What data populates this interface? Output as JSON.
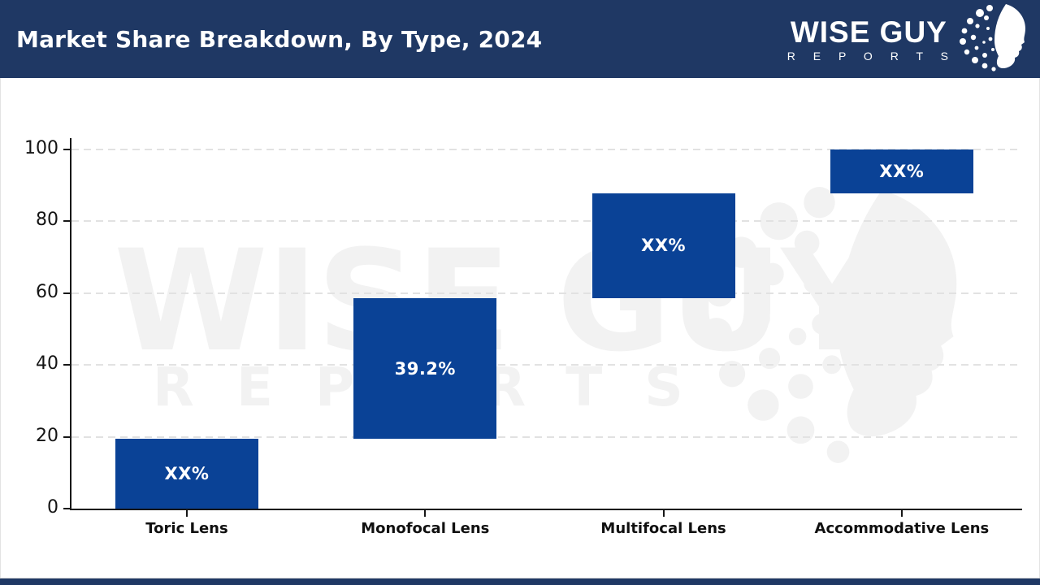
{
  "header": {
    "title": "Market Share Breakdown, By Type, 2024",
    "background_color": "#1f3864",
    "brand": {
      "line1": "WISE GUY",
      "line2": "R E P O R T S"
    }
  },
  "watermark": {
    "line1": "WISE GUY",
    "line2": "REPORTS"
  },
  "chart_data": {
    "type": "bar",
    "subtype": "waterfall-floating-bars",
    "title": "Market Share Breakdown, By Type, 2024",
    "xlabel": "",
    "ylabel": "",
    "categories": [
      "Toric Lens",
      "Monofocal Lens",
      "Multifocal Lens",
      "Accommodative Lens"
    ],
    "segments": [
      {
        "category": "Toric Lens",
        "start": 0,
        "end": 19.4,
        "label": "XX%"
      },
      {
        "category": "Monofocal Lens",
        "start": 19.4,
        "end": 58.6,
        "label": "39.2%"
      },
      {
        "category": "Multifocal Lens",
        "start": 58.6,
        "end": 87.8,
        "label": "XX%"
      },
      {
        "category": "Accommodative Lens",
        "start": 87.8,
        "end": 100,
        "label": "XX%"
      }
    ],
    "y_ticks": [
      0,
      20,
      40,
      60,
      80,
      100
    ],
    "ylim": [
      0,
      103
    ],
    "bar_color": "#0a4296",
    "bar_label_color": "#ffffff",
    "grid": "horizontal-dashed",
    "legend": "none"
  },
  "footer": {
    "background_color": "#1f3864"
  }
}
